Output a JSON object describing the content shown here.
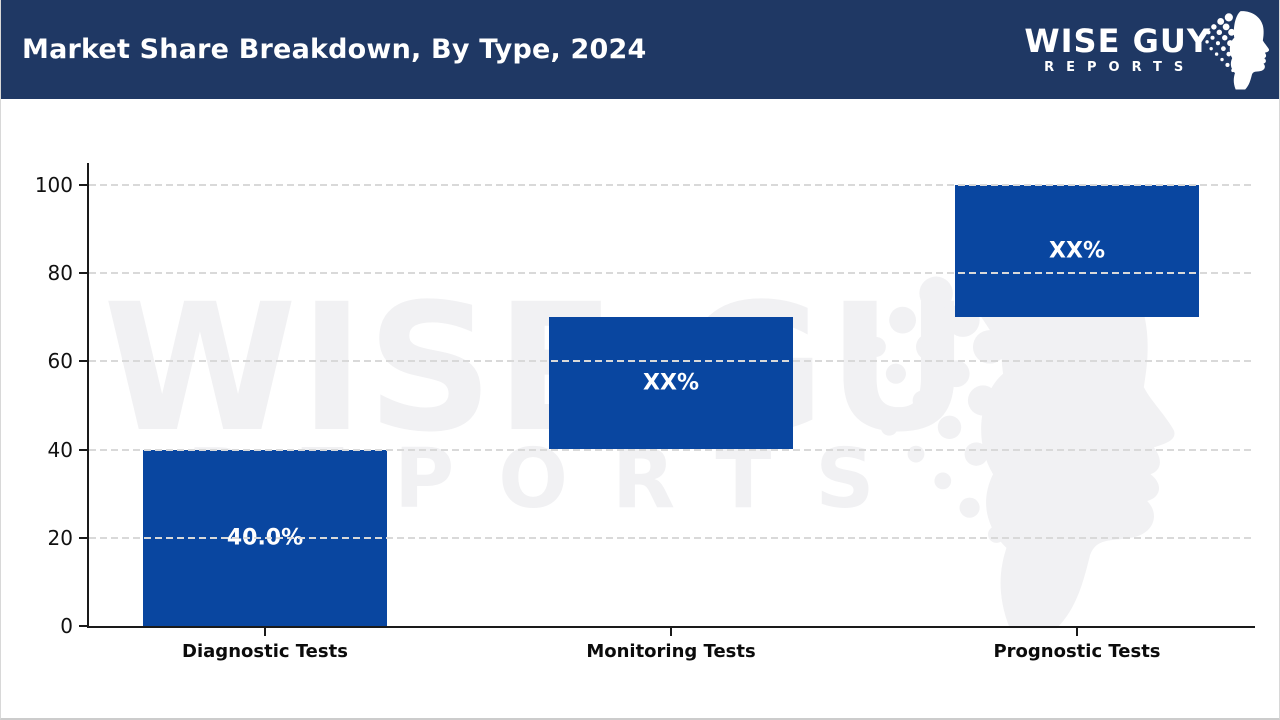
{
  "header": {
    "title": "Market Share Breakdown, By Type, 2024",
    "bg_color": "#1F3864",
    "logo": {
      "line1": "WISE GUY",
      "line2": "REPORTS",
      "head_icon": "dotted-face-profile"
    }
  },
  "watermark": {
    "line1": "WISE GUY",
    "line2": "REPORTS",
    "head_icon": "dotted-face-profile",
    "color": "#F1F1F3"
  },
  "chart_data": {
    "type": "bar",
    "variant": "waterfall-stacked-percentage",
    "title": "Market Share Breakdown, By Type, 2024",
    "categories": [
      "Diagnostic Tests",
      "Monitoring Tests",
      "Prognostic Tests"
    ],
    "segments": [
      {
        "category": "Diagnostic Tests",
        "start": 0,
        "end": 40,
        "value": 40,
        "label": "40.0%"
      },
      {
        "category": "Monitoring Tests",
        "start": 40,
        "end": 70,
        "value": 30,
        "label": "XX%"
      },
      {
        "category": "Prognostic Tests",
        "start": 70,
        "end": 100,
        "value": 30,
        "label": "XX%"
      }
    ],
    "ylim": [
      0,
      100
    ],
    "yticks": [
      0,
      20,
      40,
      60,
      80,
      100
    ],
    "xlabel": "",
    "ylabel": "",
    "grid": "horizontal-dashed",
    "legend": "none",
    "bar_color": "#0946A0",
    "gridline_color": "#D9D9D9",
    "axis_color": "#1A1A1A"
  }
}
